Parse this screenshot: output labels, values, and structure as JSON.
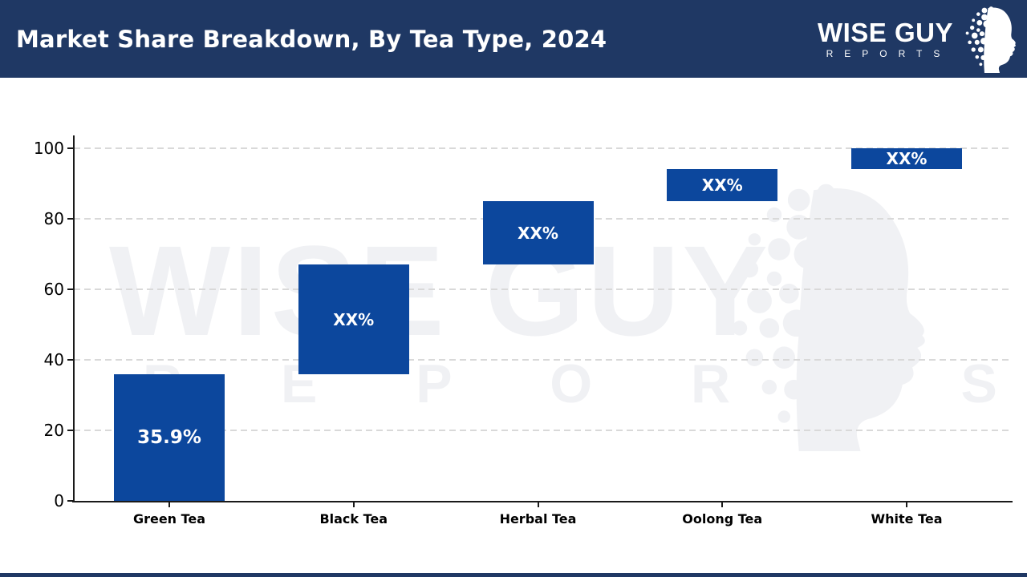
{
  "header": {
    "title": "Market Share Breakdown, By Tea Type, 2024",
    "logo": {
      "line1": "WISE GUY",
      "line2": "REPORTS"
    }
  },
  "watermark": {
    "line1": "WISE GUY",
    "line2": "REPORTS"
  },
  "chart_data": {
    "type": "bar",
    "subtype": "waterfall",
    "title": "Market Share Breakdown, By Tea Type, 2024",
    "categories": [
      "Green Tea",
      "Black Tea",
      "Herbal Tea",
      "Oolong Tea",
      "White Tea"
    ],
    "segments": [
      {
        "category": "Green Tea",
        "start": 0,
        "end": 35.9,
        "label": "35.9%"
      },
      {
        "category": "Black Tea",
        "start": 35.9,
        "end": 67.0,
        "label": "XX%"
      },
      {
        "category": "Herbal Tea",
        "start": 67.0,
        "end": 85.0,
        "label": "XX%"
      },
      {
        "category": "Oolong Tea",
        "start": 85.0,
        "end": 94.0,
        "label": "XX%"
      },
      {
        "category": "White Tea",
        "start": 94.0,
        "end": 100.0,
        "label": "XX%"
      }
    ],
    "y_ticks": [
      0,
      20,
      40,
      60,
      80,
      100
    ],
    "ylim": [
      0,
      103.5
    ],
    "xlabel": "",
    "ylabel": "",
    "grid": "horizontal-dashed",
    "legend": "none",
    "bar_color": "#0c479d",
    "label_color": "#ffffff",
    "header_color": "#1f3864"
  }
}
